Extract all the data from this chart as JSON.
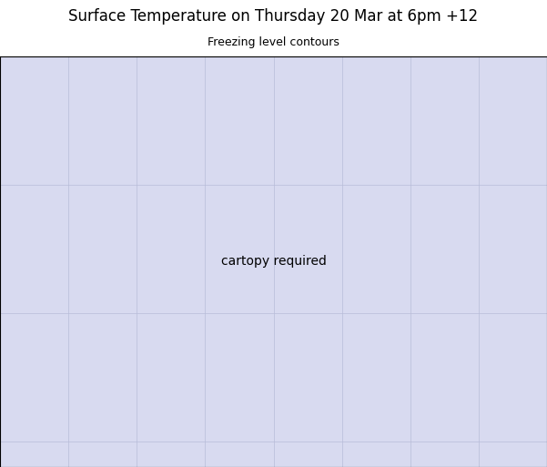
{
  "title": "Surface Temperature on Thursday 20 Mar at 6pm +12",
  "subtitle": "Freezing level contours",
  "title_fontsize": 12,
  "subtitle_fontsize": 9,
  "map_bg_color": "#d8daf0",
  "land_color": "#c8720a",
  "grid_color": "#b8bcd8",
  "contour_color": "#dd0000",
  "border_color": "#aaaaaa",
  "lon_min": 155,
  "lon_max": 195,
  "lat_min": -26,
  "lat_max": -10,
  "grid_lons": [
    160,
    165,
    170,
    175,
    180,
    185,
    190
  ],
  "grid_lats": [
    -25,
    -20,
    -15,
    -10
  ],
  "figsize": [
    6.01,
    5.13
  ],
  "dpi": 100,
  "contour_lw": 1.4,
  "label_fontsize": 7.5
}
